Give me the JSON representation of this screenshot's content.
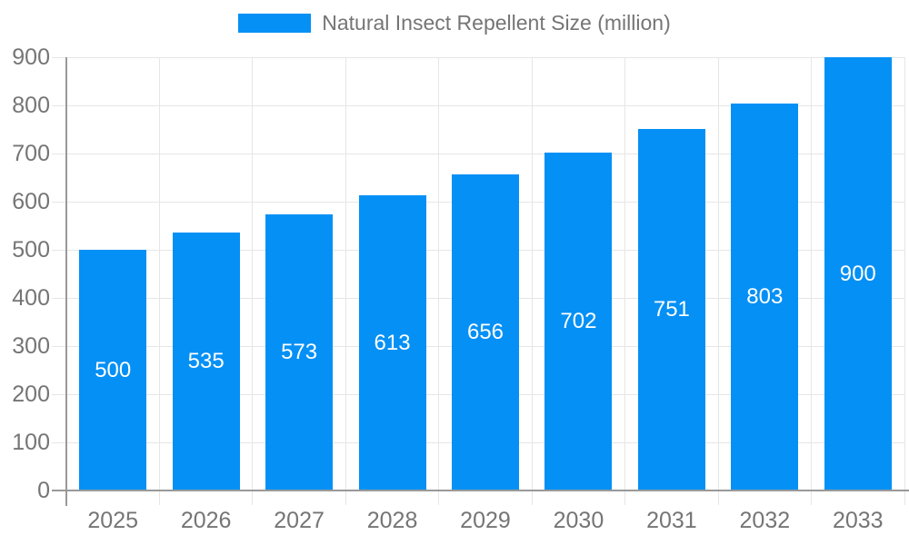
{
  "legend": {
    "label": "Natural Insect Repellent Size (million)"
  },
  "chart_data": {
    "type": "bar",
    "title": "Natural Insect Repellent Size (million)",
    "categories": [
      "2025",
      "2026",
      "2027",
      "2028",
      "2029",
      "2030",
      "2031",
      "2032",
      "2033"
    ],
    "values": [
      500,
      535,
      573,
      613,
      656,
      702,
      751,
      803,
      900
    ],
    "xlabel": "",
    "ylabel": "",
    "ylim": [
      0,
      900
    ],
    "ytick_step": 100,
    "yticks": [
      0,
      100,
      200,
      300,
      400,
      500,
      600,
      700,
      800,
      900
    ],
    "grid": true,
    "legend_position": "top",
    "value_label_position": "inside-center",
    "colors": {
      "bar": "#0590F5",
      "grid": "#E6E6E6",
      "axis": "#999999",
      "tick_text": "#757575",
      "value_text": "#FFFFFF",
      "background": "#FFFFFF"
    }
  }
}
